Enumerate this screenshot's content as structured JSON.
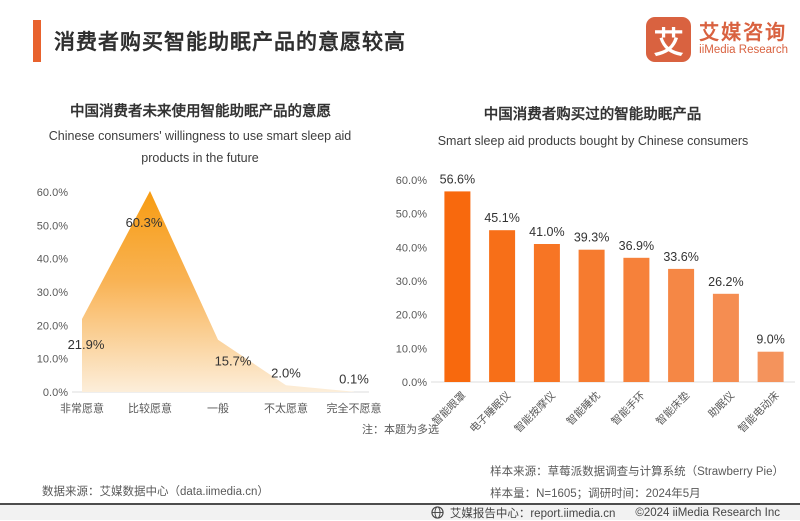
{
  "header": {
    "title": "消费者购买智能助眠产品的意愿较高",
    "accent_color": "#E8622D"
  },
  "logo": {
    "glyph": "艾",
    "name_zh": "艾媒咨询",
    "name_en": "iiMedia Research",
    "brand_color": "#D96240"
  },
  "chart_data": [
    {
      "type": "area",
      "title_zh": "中国消费者未来使用智能助眠产品的意愿",
      "title_en": "Chinese consumers' willingness to use smart sleep aid products in the future",
      "categories": [
        "非常愿意",
        "比较愿意",
        "一般",
        "不太愿意",
        "完全不愿意"
      ],
      "values": [
        21.9,
        60.3,
        15.7,
        2.0,
        0.1
      ],
      "value_labels": [
        "21.9%",
        "60.3%",
        "15.7%",
        "2.0%",
        "0.1%"
      ],
      "ylim": [
        0,
        60
      ],
      "ytick_step": 10,
      "ytick_labels": [
        "0.0%",
        "10.0%",
        "20.0%",
        "30.0%",
        "40.0%",
        "50.0%",
        "60.0%"
      ],
      "grid": false,
      "legend": "none",
      "fill_gradient_top": "#F79C12",
      "fill_gradient_mid": "#F9B355",
      "fill_gradient_bottom": "#FCEEDA"
    },
    {
      "type": "bar",
      "title_zh": "中国消费者购买过的智能助眠产品",
      "title_en": "Smart sleep aid products bought by Chinese consumers",
      "categories": [
        "智能眼罩",
        "电子睡眠仪",
        "智能按摩仪",
        "智能睡枕",
        "智能手环",
        "智能床垫",
        "助眠仪",
        "智能电动床"
      ],
      "values": [
        56.6,
        45.1,
        41.0,
        39.3,
        36.9,
        33.6,
        26.2,
        9.0
      ],
      "value_labels": [
        "56.6%",
        "45.1%",
        "41.0%",
        "39.3%",
        "36.9%",
        "33.6%",
        "26.2%",
        "9.0%"
      ],
      "ylim": [
        0,
        60
      ],
      "ytick_step": 10,
      "ytick_labels": [
        "0.0%",
        "10.0%",
        "20.0%",
        "30.0%",
        "40.0%",
        "50.0%",
        "60.0%"
      ],
      "grid": false,
      "legend": "none",
      "note": "注：本题为多选",
      "bar_colors": [
        "#F8690D",
        "#F76F18",
        "#F77524",
        "#F67B2F",
        "#F6813A",
        "#F58745",
        "#F58D51",
        "#F4935C"
      ]
    }
  ],
  "sources": {
    "data_source": "数据来源：艾媒数据中心（data.iimedia.cn）",
    "sample_source": "样本来源：草莓派数据调查与计算系统（Strawberry Pie）",
    "sample_info": "样本量：N=1605；调研时间：2024年5月"
  },
  "footer": {
    "report_center": "艾媒报告中心：report.iimedia.cn",
    "copyright": "©2024  iiMedia Research Inc"
  },
  "theme": {
    "tick_color": "#595959",
    "label_color": "#333333",
    "baseline_color": "#dddddd"
  }
}
